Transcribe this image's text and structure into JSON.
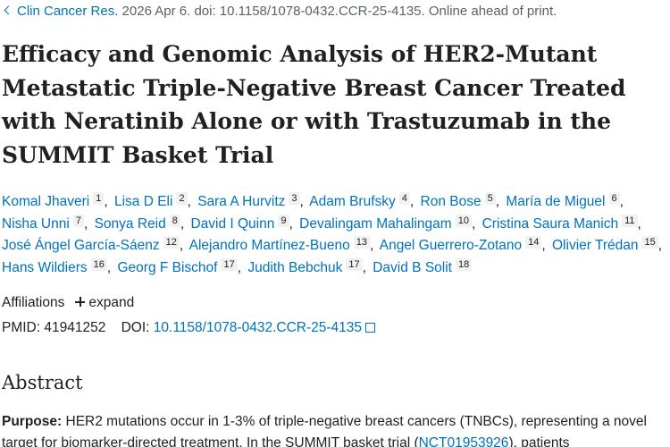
{
  "journal_line": {
    "journal": "Clin Cancer Res.",
    "citation": "2026 Apr 6. doi: 10.1158/1078-0432.CCR-25-4135. Online ahead of print."
  },
  "title": "Efficacy and Genomic Analysis of HER2-Mutant Metastatic Triple-Negative Breast Cancer Treated with Neratinib Alone or with Trastuzumab in the SUMMIT Basket Trial",
  "authors": [
    {
      "name": "Komal Jhaveri",
      "aff": "1"
    },
    {
      "name": "Lisa D Eli",
      "aff": "2"
    },
    {
      "name": "Sara A Hurvitz",
      "aff": "3"
    },
    {
      "name": "Adam Brufsky",
      "aff": "4"
    },
    {
      "name": "Ron Bose",
      "aff": "5"
    },
    {
      "name": "María de Miguel",
      "aff": "6"
    },
    {
      "name": "Nisha Unni",
      "aff": "7"
    },
    {
      "name": "Sonya Reid",
      "aff": "8"
    },
    {
      "name": "David I Quinn",
      "aff": "9"
    },
    {
      "name": "Devalingam Mahalingam",
      "aff": "10"
    },
    {
      "name": "Cristina Saura Manich",
      "aff": "11"
    },
    {
      "name": "José Ángel García-Sáenz",
      "aff": "12"
    },
    {
      "name": "Alejandro Martínez-Bueno",
      "aff": "13"
    },
    {
      "name": "Angel Guerrero-Zotano",
      "aff": "14"
    },
    {
      "name": "Olivier Trédan",
      "aff": "15"
    },
    {
      "name": "Hans Wildiers",
      "aff": "16"
    },
    {
      "name": "Georg F Bischof",
      "aff": "17"
    },
    {
      "name": "Judith Bebchuk",
      "aff": "17"
    },
    {
      "name": "David B Solit",
      "aff": "18"
    }
  ],
  "affiliations": {
    "label": "Affiliations",
    "toggle": "expand"
  },
  "identifiers": {
    "pmid_label": "PMID:",
    "pmid": "41941252",
    "doi_label": "DOI:",
    "doi": "10.1158/1078-0432.CCR-25-4135"
  },
  "abstract": {
    "heading": "Abstract",
    "purpose_label": "Purpose:",
    "purpose_text": [
      "HER2 mutations occur in 1-3% of triple-negative breast cancers (TNBCs), representing a novel target for biomarker-directed treatment. In the SUMMIT basket trial (",
      "NCT01953926",
      "), patients"
    ]
  }
}
